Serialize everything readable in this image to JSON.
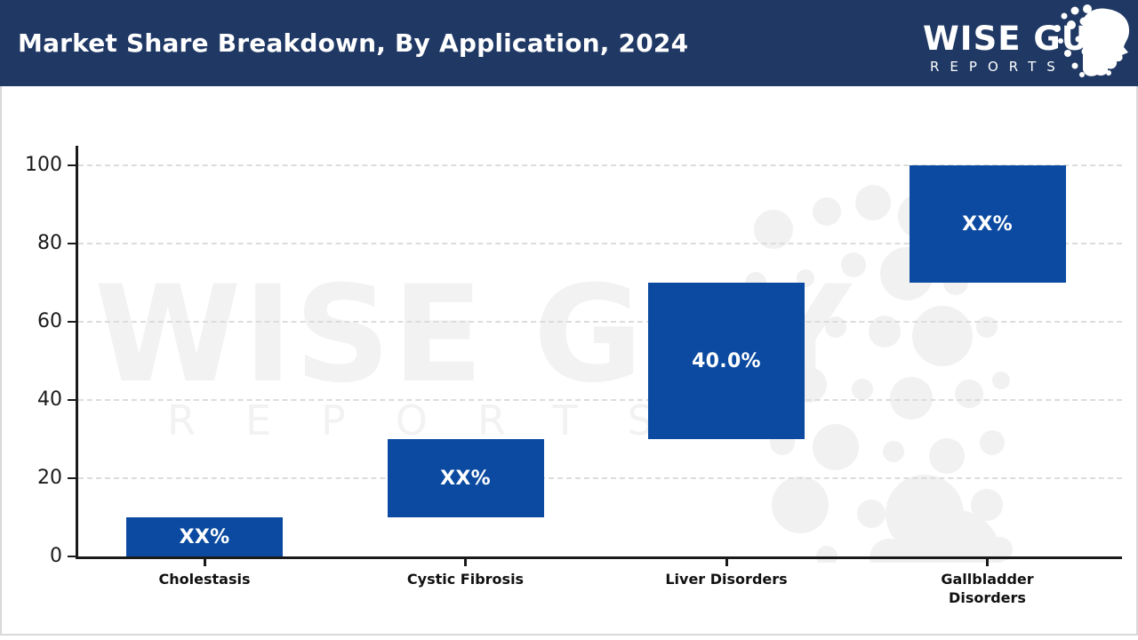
{
  "header": {
    "bg_color": "#1f3864",
    "title": "Market Share Breakdown, By Application, 2024",
    "logo": {
      "wordmark": "WISE GUY",
      "subtext": "REPORTS",
      "icon": "dotted-head-profile"
    }
  },
  "watermark": {
    "wordmark": "WISE GUY",
    "subtext": "REPORTS",
    "icon": "dotted-head-profile"
  },
  "chart_data": {
    "type": "bar",
    "subtype": "floating-waterfall",
    "title": "Market Share Breakdown, By Application, 2024",
    "categories": [
      "Cholestasis",
      "Cystic Fibrosis",
      "Liver Disorders",
      "Gallbladder Disorders"
    ],
    "segments": [
      {
        "category": "Cholestasis",
        "start": 0,
        "end": 10,
        "label": "XX%"
      },
      {
        "category": "Cystic Fibrosis",
        "start": 10,
        "end": 30,
        "label": "XX%"
      },
      {
        "category": "Liver Disorders",
        "start": 30,
        "end": 70,
        "label": "40.0%"
      },
      {
        "category": "Gallbladder Disorders",
        "start": 70,
        "end": 100,
        "label": "XX%"
      }
    ],
    "xlabel": "",
    "ylabel": "",
    "yticks": [
      0,
      20,
      40,
      60,
      80,
      100
    ],
    "ylim": [
      0,
      105
    ],
    "grid": "horizontal-dashed",
    "legend": "none",
    "bar_color": "#0b4aa0",
    "bar_label_color": "#ffffff",
    "axis_color": "#1a1a1a",
    "gridline_color": "#dcdcdc"
  }
}
